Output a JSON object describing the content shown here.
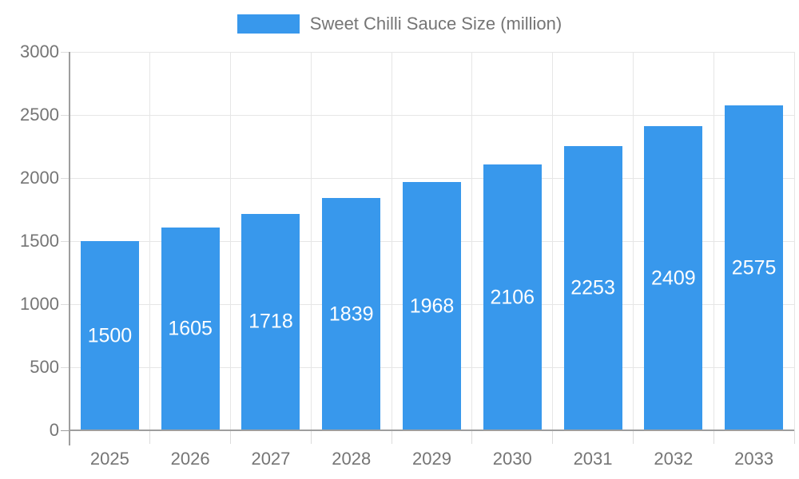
{
  "legend": {
    "label": "Sweet Chilli Sauce Size (million)"
  },
  "chart_data": {
    "type": "bar",
    "categories": [
      "2025",
      "2026",
      "2027",
      "2028",
      "2029",
      "2030",
      "2031",
      "2032",
      "2033"
    ],
    "values": [
      1500,
      1605,
      1718,
      1839,
      1968,
      2106,
      2253,
      2409,
      2575
    ],
    "series_name": "Sweet Chilli Sauce Size (million)",
    "xlabel": "",
    "ylabel": "",
    "ylim": [
      0,
      3000
    ],
    "y_ticks": [
      0,
      500,
      1000,
      1500,
      2000,
      2500,
      3000
    ],
    "grid": true,
    "legend_position": "top",
    "value_label_position": "inside-center",
    "colors": {
      "bar": "#3898ec",
      "grid": "#e6e6e6",
      "axis": "#9e9e9e",
      "tick_mark": "#dcdcdc",
      "axis_text": "#757575",
      "value_label": "#ffffff",
      "background": "#ffffff"
    }
  }
}
